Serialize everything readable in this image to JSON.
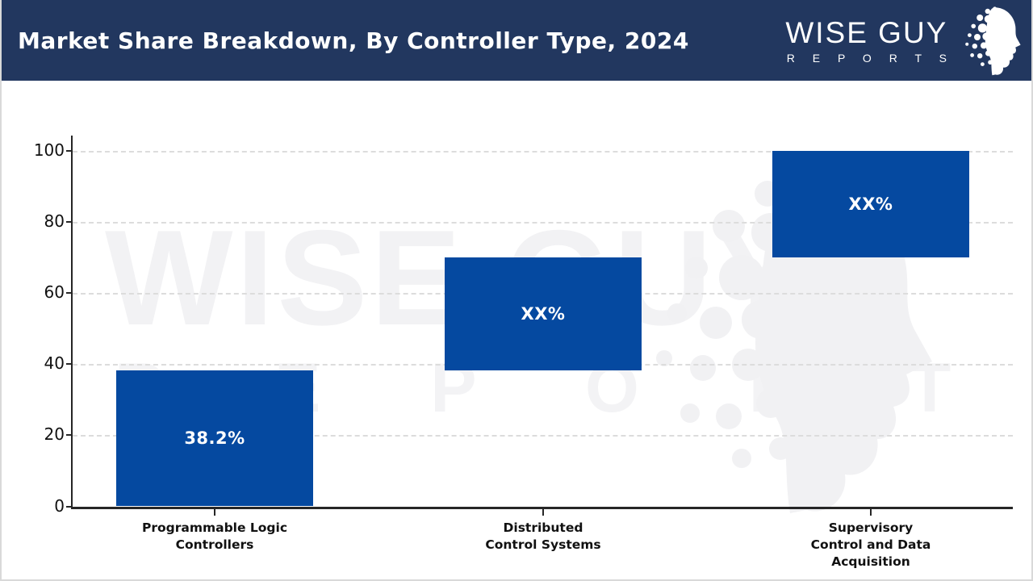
{
  "header": {
    "title": "Market Share Breakdown, By Controller Type, 2024",
    "logo": {
      "line1": "WISE GUY",
      "line2": "R E P O R T S"
    },
    "bg_color": "#22375f"
  },
  "watermark": {
    "line1": "WISE GUY",
    "line2": "R E P O R T S"
  },
  "chart_data": {
    "type": "bar",
    "subtype": "floating-waterfall",
    "title": "Market Share Breakdown, By Controller Type, 2024",
    "categories": [
      "Programmable Logic Controllers",
      "Distributed Control Systems",
      "Supervisory Control and Data Acquisition"
    ],
    "bars": [
      {
        "category": "Programmable Logic Controllers",
        "label_lines": [
          "Programmable Logic",
          "Controllers"
        ],
        "start": 0,
        "end": 38.2,
        "value_label": "38.2%"
      },
      {
        "category": "Distributed Control Systems",
        "label_lines": [
          "Distributed",
          "Control Systems"
        ],
        "start": 38.2,
        "end": 70,
        "value_label": "XX%"
      },
      {
        "category": "Supervisory Control and Data Acquisition",
        "label_lines": [
          "Supervisory",
          "Control and Data",
          "Acquisition"
        ],
        "start": 70,
        "end": 100,
        "value_label": "XX%"
      }
    ],
    "xlabel": "",
    "ylabel": "",
    "y_axis": {
      "ticks": [
        0,
        20,
        40,
        60,
        80,
        100
      ],
      "range": [
        0,
        104
      ]
    },
    "grid": "horizontal-dashed",
    "legend": "none",
    "colors": {
      "bar": "#0549a0",
      "value_label": "#ffffff",
      "axis": "#262626",
      "gridline": "#dcdcdc",
      "header_bg": "#22375f",
      "tick_label": "#111111"
    }
  }
}
